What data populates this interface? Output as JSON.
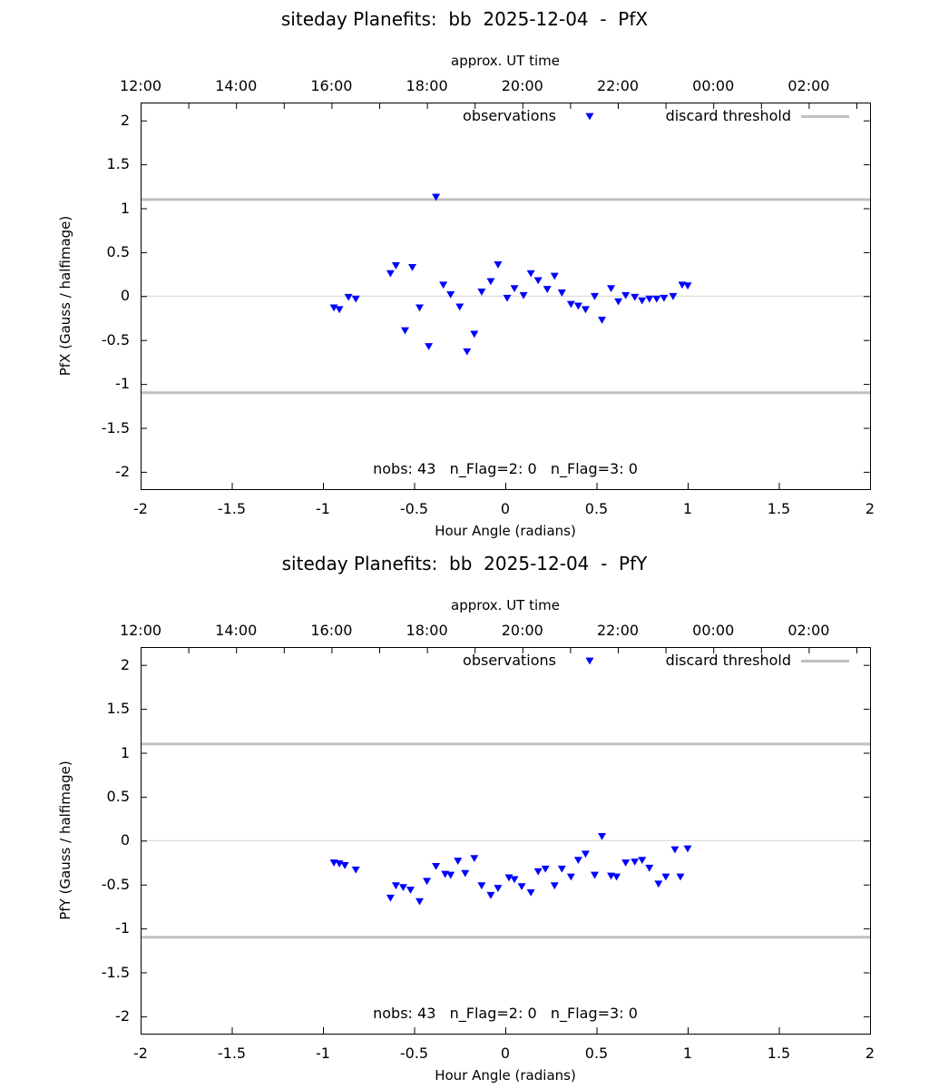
{
  "page": {
    "background": "#ffffff"
  },
  "colors": {
    "marker_blue": "#0000ff",
    "threshold_gray": "#c0c0c0",
    "zero_line_gray": "#d2d2d2",
    "axis_black": "#000000"
  },
  "chart_data": [
    {
      "type": "scatter",
      "title": "siteday Planefits:  bb  2025-12-04  -  PfX",
      "top_axis": {
        "label": "approx. UT time",
        "tick_labels": [
          "12:00",
          "14:00",
          "16:00",
          "18:00",
          "20:00",
          "22:00",
          "00:00",
          "02:00"
        ],
        "label_hour_offsets": [
          0,
          2,
          4,
          6,
          8,
          10,
          12,
          14
        ],
        "n_hour_ticks": 16
      },
      "xlabel": "Hour Angle (radians)",
      "ylabel": "PfX (Gauss / halfimage)",
      "xlim": [
        -2,
        2
      ],
      "ylim": [
        -2.2,
        2.2
      ],
      "x_ticks": [
        -2,
        -1.5,
        -1,
        -0.5,
        0,
        0.5,
        1,
        1.5,
        2
      ],
      "x_tick_labels": [
        "-2",
        "-1.5",
        "-1",
        "-0.5",
        "0",
        "0.5",
        "1",
        "1.5",
        "2"
      ],
      "y_ticks": [
        -2,
        -1.5,
        -1,
        -0.5,
        0,
        0.5,
        1,
        1.5,
        2
      ],
      "y_tick_labels": [
        "-2",
        "-1.5",
        "-1",
        "-0.5",
        "0",
        "0.5",
        "1",
        "1.5",
        "2"
      ],
      "legend": [
        {
          "label": "observations",
          "marker": "triangle-down-filled"
        },
        {
          "label": "discard threshold",
          "marker": "line"
        }
      ],
      "discard_threshold": 1.1,
      "zero_line": 0,
      "annotation": "nobs: 43   n_Flag=2: 0   n_Flag=3: 0",
      "grid": false,
      "points": [
        [
          -0.94,
          -0.13
        ],
        [
          -0.91,
          -0.15
        ],
        [
          -0.86,
          -0.01
        ],
        [
          -0.82,
          -0.03
        ],
        [
          -0.63,
          0.26
        ],
        [
          -0.6,
          0.35
        ],
        [
          -0.55,
          -0.39
        ],
        [
          -0.51,
          0.33
        ],
        [
          -0.47,
          -0.13
        ],
        [
          -0.42,
          -0.57
        ],
        [
          -0.38,
          1.13
        ],
        [
          -0.34,
          0.13
        ],
        [
          -0.3,
          0.02
        ],
        [
          -0.25,
          -0.12
        ],
        [
          -0.21,
          -0.63
        ],
        [
          -0.17,
          -0.43
        ],
        [
          -0.13,
          0.05
        ],
        [
          -0.08,
          0.17
        ],
        [
          -0.04,
          0.36
        ],
        [
          0.01,
          -0.02
        ],
        [
          0.05,
          0.09
        ],
        [
          0.1,
          0.01
        ],
        [
          0.14,
          0.26
        ],
        [
          0.18,
          0.18
        ],
        [
          0.23,
          0.08
        ],
        [
          0.27,
          0.23
        ],
        [
          0.31,
          0.04
        ],
        [
          0.36,
          -0.09
        ],
        [
          0.4,
          -0.11
        ],
        [
          0.44,
          -0.15
        ],
        [
          0.49,
          0.0
        ],
        [
          0.53,
          -0.27
        ],
        [
          0.58,
          0.09
        ],
        [
          0.62,
          -0.06
        ],
        [
          0.66,
          0.01
        ],
        [
          0.71,
          -0.01
        ],
        [
          0.75,
          -0.05
        ],
        [
          0.79,
          -0.03
        ],
        [
          0.83,
          -0.03
        ],
        [
          0.87,
          -0.02
        ],
        [
          0.92,
          0.0
        ],
        [
          0.97,
          0.13
        ],
        [
          1.0,
          0.12
        ]
      ]
    },
    {
      "type": "scatter",
      "title": "siteday Planefits:  bb  2025-12-04  -  PfY",
      "top_axis": {
        "label": "approx. UT time",
        "tick_labels": [
          "12:00",
          "14:00",
          "16:00",
          "18:00",
          "20:00",
          "22:00",
          "00:00",
          "02:00"
        ],
        "label_hour_offsets": [
          0,
          2,
          4,
          6,
          8,
          10,
          12,
          14
        ],
        "n_hour_ticks": 16
      },
      "xlabel": "Hour Angle (radians)",
      "ylabel": "PfY (Gauss / halfimage)",
      "xlim": [
        -2,
        2
      ],
      "ylim": [
        -2.2,
        2.2
      ],
      "x_ticks": [
        -2,
        -1.5,
        -1,
        -0.5,
        0,
        0.5,
        1,
        1.5,
        2
      ],
      "x_tick_labels": [
        "-2",
        "-1.5",
        "-1",
        "-0.5",
        "0",
        "0.5",
        "1",
        "1.5",
        "2"
      ],
      "y_ticks": [
        -2,
        -1.5,
        -1,
        -0.5,
        0,
        0.5,
        1,
        1.5,
        2
      ],
      "y_tick_labels": [
        "-2",
        "-1.5",
        "-1",
        "-0.5",
        "0",
        "0.5",
        "1",
        "1.5",
        "2"
      ],
      "legend": [
        {
          "label": "observations",
          "marker": "triangle-down-filled"
        },
        {
          "label": "discard threshold",
          "marker": "line"
        }
      ],
      "discard_threshold": 1.1,
      "zero_line": 0,
      "annotation": "nobs: 43   n_Flag=2: 0   n_Flag=3: 0",
      "grid": false,
      "points": [
        [
          -0.94,
          -0.25
        ],
        [
          -0.91,
          -0.26
        ],
        [
          -0.88,
          -0.28
        ],
        [
          -0.82,
          -0.33
        ],
        [
          -0.63,
          -0.65
        ],
        [
          -0.6,
          -0.51
        ],
        [
          -0.56,
          -0.53
        ],
        [
          -0.52,
          -0.56
        ],
        [
          -0.47,
          -0.69
        ],
        [
          -0.43,
          -0.46
        ],
        [
          -0.38,
          -0.29
        ],
        [
          -0.33,
          -0.38
        ],
        [
          -0.3,
          -0.39
        ],
        [
          -0.26,
          -0.23
        ],
        [
          -0.22,
          -0.37
        ],
        [
          -0.17,
          -0.2
        ],
        [
          -0.13,
          -0.51
        ],
        [
          -0.08,
          -0.62
        ],
        [
          -0.04,
          -0.54
        ],
        [
          0.02,
          -0.42
        ],
        [
          0.05,
          -0.44
        ],
        [
          0.09,
          -0.52
        ],
        [
          0.14,
          -0.59
        ],
        [
          0.18,
          -0.35
        ],
        [
          0.22,
          -0.32
        ],
        [
          0.27,
          -0.51
        ],
        [
          0.31,
          -0.32
        ],
        [
          0.36,
          -0.41
        ],
        [
          0.4,
          -0.22
        ],
        [
          0.44,
          -0.15
        ],
        [
          0.49,
          -0.39
        ],
        [
          0.53,
          0.05
        ],
        [
          0.58,
          -0.4
        ],
        [
          0.61,
          -0.41
        ],
        [
          0.66,
          -0.25
        ],
        [
          0.71,
          -0.24
        ],
        [
          0.75,
          -0.22
        ],
        [
          0.79,
          -0.31
        ],
        [
          0.84,
          -0.49
        ],
        [
          0.88,
          -0.41
        ],
        [
          0.93,
          -0.1
        ],
        [
          0.96,
          -0.41
        ],
        [
          1.0,
          -0.09
        ]
      ]
    }
  ]
}
